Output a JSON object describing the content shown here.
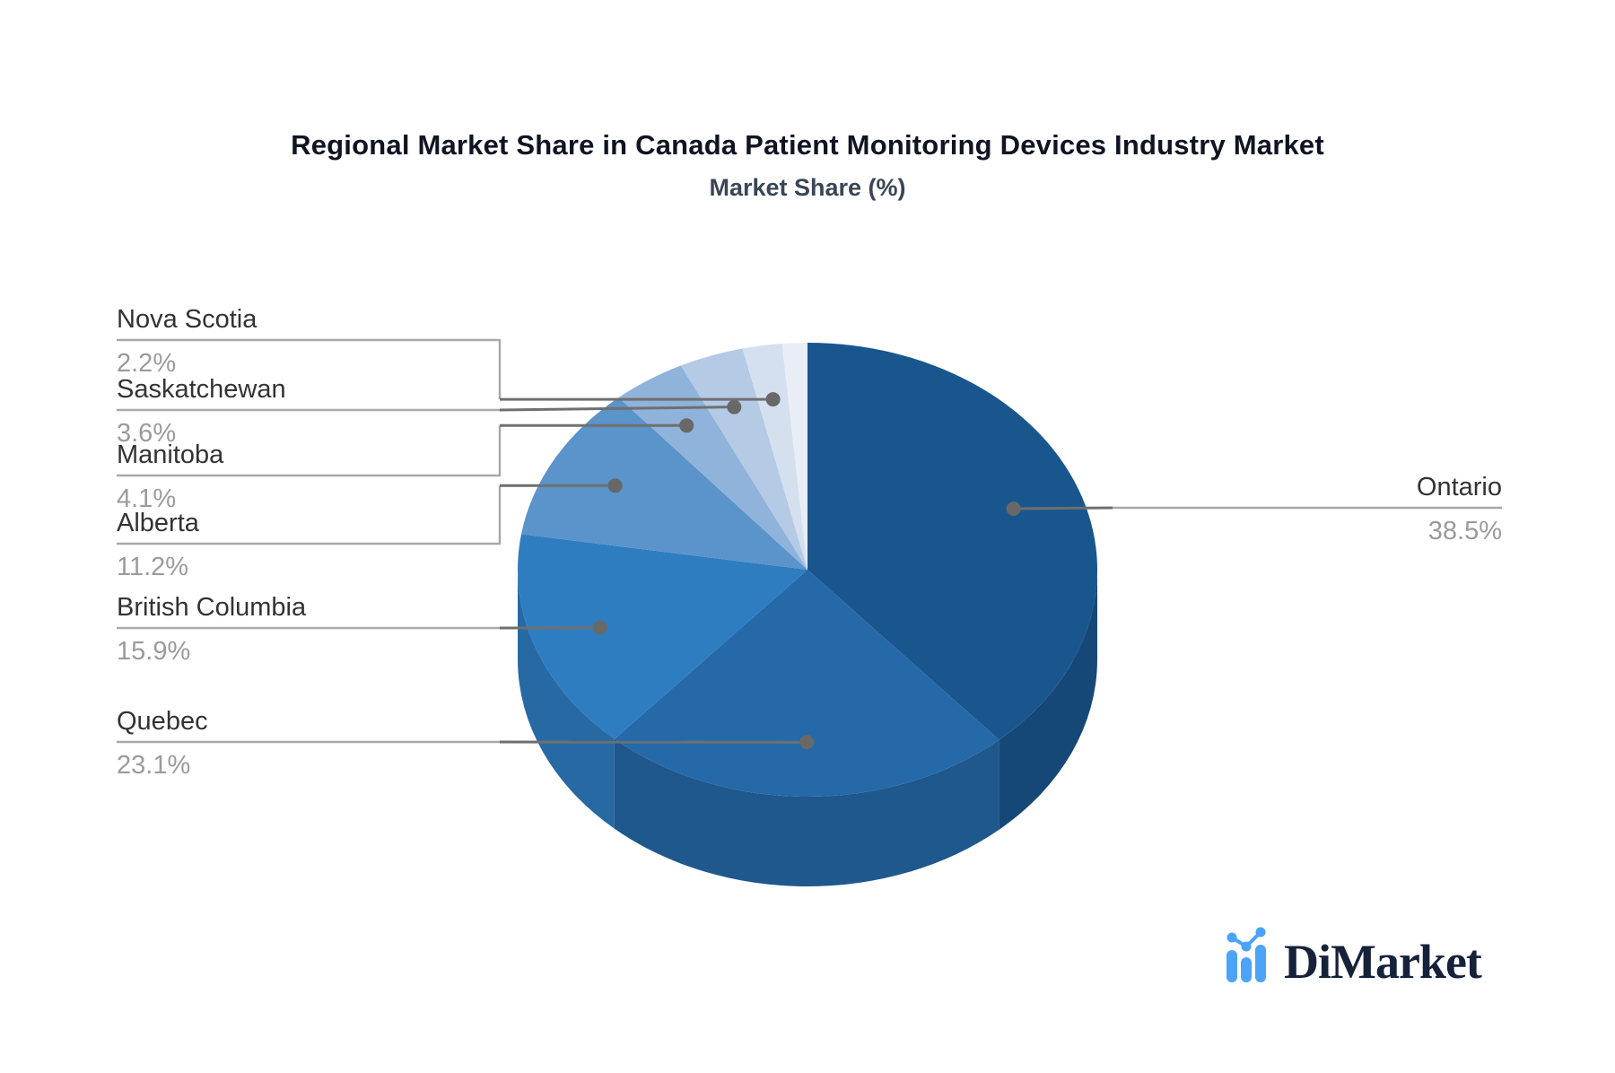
{
  "chart_data": {
    "type": "pie",
    "title": "Regional Market Share in Canada Patient Monitoring Devices Industry Market",
    "subtitle": "Market Share (%)",
    "unit": "%",
    "legend_position": "callout-labels",
    "slices": [
      {
        "label": "Ontario",
        "value": 38.5,
        "color": "#1a568e"
      },
      {
        "label": "Quebec",
        "value": 23.1,
        "color": "#2569a8"
      },
      {
        "label": "British Columbia",
        "value": 15.9,
        "color": "#2f7dc1"
      },
      {
        "label": "Alberta",
        "value": 11.2,
        "color": "#5b93cb"
      },
      {
        "label": "Manitoba",
        "value": 4.1,
        "color": "#8fb3da"
      },
      {
        "label": "Saskatchewan",
        "value": 3.6,
        "color": "#b4cae5"
      },
      {
        "label": "Nova Scotia",
        "value": 2.2,
        "color": "#d5e0ef"
      },
      {
        "label": "",
        "value": 1.4,
        "color": "#e9eef6"
      }
    ],
    "callout_line_color": "#a9a9a9",
    "leader_line_color": "#6f6f6f",
    "label_text_color": "#333333",
    "percent_text_color": "#9b9b9b"
  },
  "brand": {
    "name": "DiMarket",
    "icon": "bar-chart-logo",
    "icon_color": "#4BA4F7",
    "text_color": "#15223a"
  }
}
